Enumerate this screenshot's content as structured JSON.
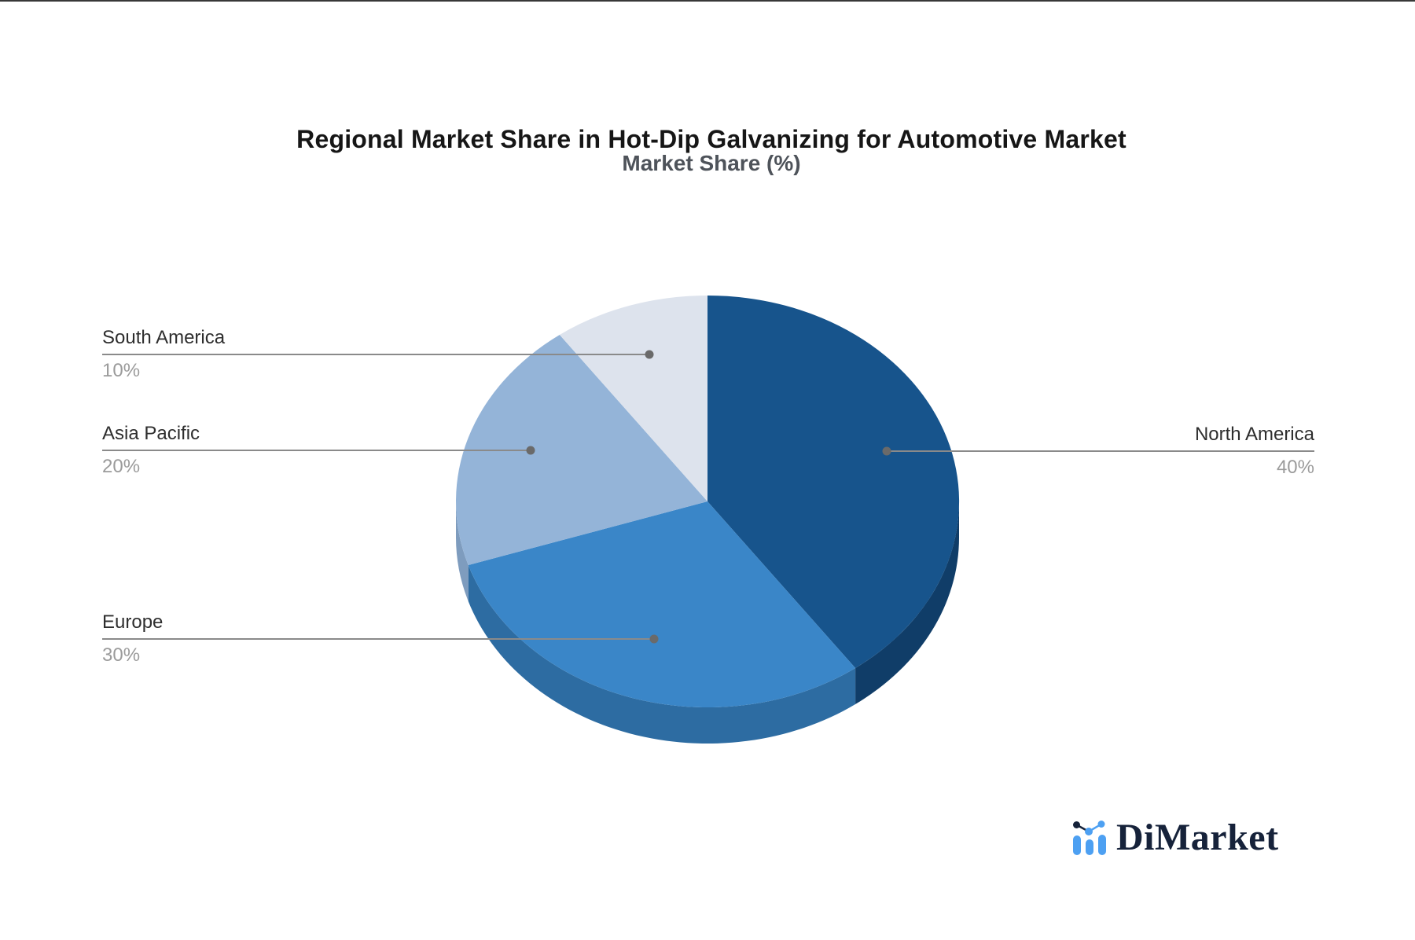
{
  "header": {
    "title": "Regional Market Share in Hot-Dip Galvanizing for Automotive Market",
    "subtitle": "Market Share (%)"
  },
  "chart_data": {
    "type": "pie",
    "title": "Regional Market Share in Hot-Dip Galvanizing for Automotive Market",
    "subtitle": "Market Share (%)",
    "unit": "%",
    "start_angle_deg": 0,
    "direction": "clockwise",
    "effect": "3d",
    "legend": "none, leader-line callout labels",
    "categories": [
      "North America",
      "Europe",
      "Asia Pacific",
      "South America"
    ],
    "values": [
      40,
      30,
      20,
      10
    ],
    "slices": [
      {
        "label": "North America",
        "value": 40,
        "display": "40%",
        "color": "#17548C",
        "side_color": "#103D68",
        "label_side": "right"
      },
      {
        "label": "Europe",
        "value": 30,
        "display": "30%",
        "color": "#3A86C8",
        "side_color": "#2D6CA2",
        "label_side": "left"
      },
      {
        "label": "Asia Pacific",
        "value": 20,
        "display": "20%",
        "color": "#94B4D8",
        "side_color": "#7E9CBE",
        "label_side": "left"
      },
      {
        "label": "South America",
        "value": 10,
        "display": "10%",
        "color": "#DDE3ED",
        "side_color": "#B9C4D4",
        "label_side": "left"
      }
    ],
    "style": {
      "leader_line_color": "#8A8A8A",
      "leader_dot_color": "#6A6A6A",
      "label_color": "#2E2E2E",
      "value_color": "#9B9B9B",
      "title_color": "#161616",
      "subtitle_color": "#4E535A"
    }
  },
  "branding": {
    "name": "DiMarket",
    "icon": "bar-line-chart-icon",
    "icon_bar_color": "#4DA0F2",
    "icon_accent_color": "#16223A",
    "text_color": "#16223A"
  }
}
